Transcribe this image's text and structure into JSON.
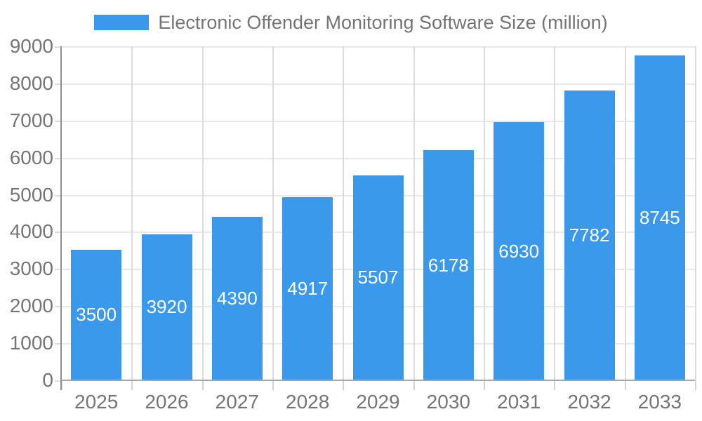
{
  "legend": {
    "label": "Electronic Offender Monitoring Software Size (million)"
  },
  "colors": {
    "bar": "#3b99ec",
    "axis_text": "#757575",
    "bar_label_text": "#ffffff",
    "h_gridline": "#e9e9e9",
    "v_gridline": "#dcdcdc",
    "y_axis_line": "#8f8f8f",
    "x_axis_line": "#a6a6a6"
  },
  "chart_data": {
    "type": "bar",
    "title": "Electronic Offender Monitoring Software Size (million)",
    "categories": [
      "2025",
      "2026",
      "2027",
      "2028",
      "2029",
      "2030",
      "2031",
      "2032",
      "2033"
    ],
    "values": [
      3500,
      3920,
      4390,
      4917,
      5507,
      6178,
      6930,
      7782,
      8745
    ],
    "series": [
      {
        "name": "Electronic Offender Monitoring Software Size (million)",
        "values": [
          3500,
          3920,
          4390,
          4917,
          5507,
          6178,
          6930,
          7782,
          8745
        ]
      }
    ],
    "xlabel": "",
    "ylabel": "",
    "ylim": [
      0,
      9000
    ],
    "ytick_step": 1000,
    "yticks": [
      0,
      1000,
      2000,
      3000,
      4000,
      5000,
      6000,
      7000,
      8000,
      9000
    ],
    "grid": true,
    "legend_position": "top",
    "value_label_position": "inside-center"
  }
}
